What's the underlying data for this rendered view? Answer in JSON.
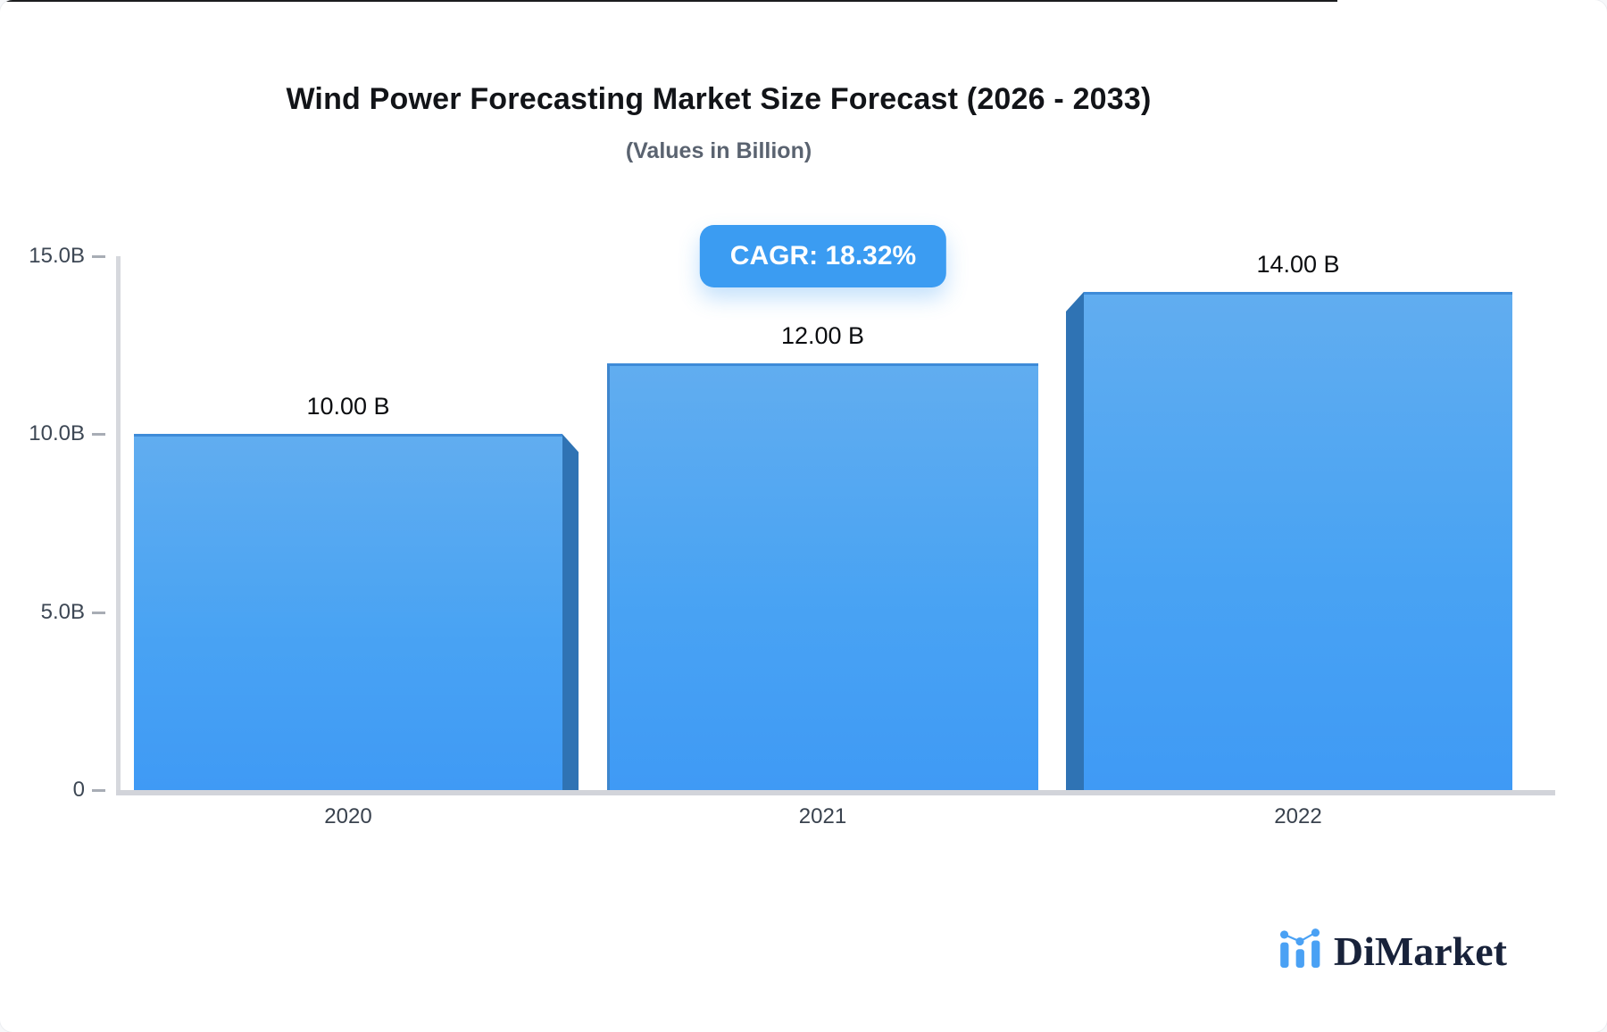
{
  "page": {
    "title": "Wind Power Forecasting Market Size Forecast (2026 - 2033)",
    "subtitle": "(Values in Billion)",
    "cagr_badge": "CAGR: 18.32%",
    "brand": {
      "name": "DiMarket",
      "icon": "bar-chart-logo-icon",
      "icon_color": "#4aa1f4",
      "text_color": "#18223a"
    }
  },
  "colors": {
    "bar_face_top": "#61adf0",
    "bar_face_bottom": "#3f9af5",
    "bar_side_3d": "#2f73b4",
    "bar_top_edge": "#3e8bd8",
    "badge_background": "#3b9cf2",
    "badge_text": "#ffffff",
    "axis_line": "#d5d7dc",
    "tick_text": "#3d4754",
    "value_label_text": "#0b0d10"
  },
  "chart_data": {
    "type": "bar",
    "title": "Wind Power Forecasting Market Size Forecast (2026 - 2033)",
    "subtitle": "(Values in Billion)",
    "categories": [
      "2020",
      "2021",
      "2022"
    ],
    "values": [
      10,
      12,
      14
    ],
    "value_labels": [
      "10.00 B",
      "12.00 B",
      "14.00 B"
    ],
    "xlabel": "",
    "ylabel": "",
    "ylim": [
      0,
      15
    ],
    "yticks": [
      {
        "value": 15,
        "label": "15.0B"
      },
      {
        "value": 10,
        "label": "10.0B"
      },
      {
        "value": 5,
        "label": "5.0B"
      },
      {
        "value": 0,
        "label": "0"
      }
    ],
    "grid": false,
    "legend": false,
    "annotations": [
      "CAGR: 18.32%"
    ]
  }
}
